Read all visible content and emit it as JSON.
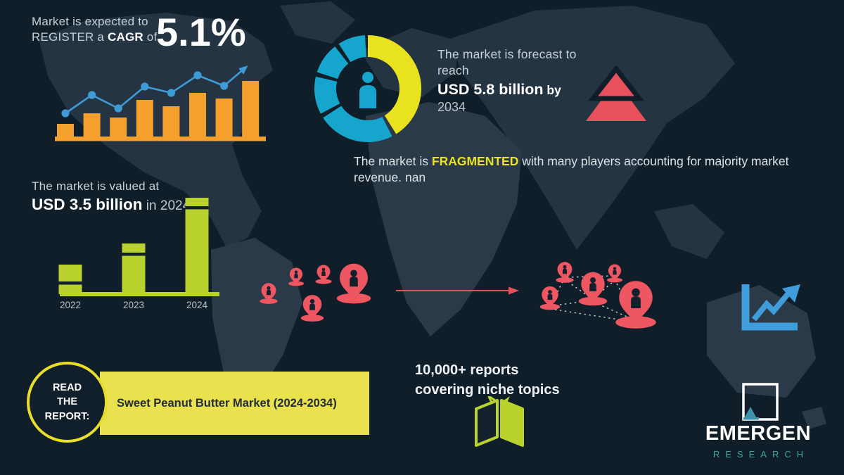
{
  "canvas": {
    "background": "#101e29",
    "map_fill": "#253443",
    "map_fill_light": "#2b3a48"
  },
  "cagr_block": {
    "line1": "Market is expected to",
    "line2_pre": "REGISTER a ",
    "line2_bold": "CAGR",
    "line2_post": " of",
    "value": "5.1%"
  },
  "forecast_block": {
    "line1": "The market is forecast to",
    "line2": "reach",
    "value": "USD 5.8 billion",
    "by": " by",
    "year": "2034"
  },
  "fragmented_block": {
    "pre": "The market is ",
    "highlight": "FRAGMENTED",
    "post": " with many players accounting for majority market revenue. nan"
  },
  "valued_block": {
    "line1": "The market is valued at",
    "value": "USD 3.5 billion",
    "suffix": " in 2024"
  },
  "report_cta": {
    "badge": [
      "READ",
      "THE",
      "REPORT:"
    ],
    "title": "Sweet Peanut Butter Market (2024-2034)"
  },
  "reports_blurb": {
    "line1": "10,000+ reports",
    "line2": "covering niche topics"
  },
  "brand": {
    "name": "EMERGEN",
    "sub": "RESEARCH"
  },
  "icons": {
    "growth_trend": "trend-line-arrow-icon",
    "market_increase": "double-up-arrow-icon",
    "market_share": "donut-person-icon",
    "players": "location-pin-icon",
    "reports": "open-book-icon",
    "growth_chart": "line-chart-axis-arrow-icon",
    "brand_mark": "square-growth-logo-icon"
  },
  "colors": {
    "orange": "#f5a02c",
    "line_blue": "#3e9bd6",
    "donut_yellow": "#e9e21f",
    "cyan": "#15a5cd",
    "green": "#b9d22e",
    "coral": "#ee5661",
    "banner_yellow": "#e9e14e",
    "badge_ring_yellow": "#e8dd2b",
    "highlight_yellow": "#e9e41f",
    "teal": "#3aa79e",
    "icon_blue": "#3f9ddb",
    "text_light": "#c7d0d7",
    "navy": "#13212d"
  },
  "players_illustration": {
    "left_cluster_pins": 5,
    "right_cluster_pins": 5
  },
  "chart_data": [
    {
      "id": "cagr-trend",
      "type": "bar",
      "title": "Upward market growth illustration (CAGR 5.1%)",
      "values": [
        18,
        33,
        27,
        52,
        43,
        62,
        54,
        79
      ],
      "trend_points": [
        29,
        55,
        36,
        67,
        58,
        83,
        68
      ],
      "x_labels": [],
      "unit": "relative height, bars not labeled",
      "bar_color": "#f5a02c",
      "line_color": "#3e9bd6",
      "annotation": "rising trend line with arrow, CAGR 5.1%"
    },
    {
      "id": "market-valuation",
      "type": "bar",
      "categories": [
        "2022",
        "2023",
        "2024"
      ],
      "values": [
        42,
        72,
        137
      ],
      "unit": "relative height, only 2024 value labeled",
      "annotation": "USD 3.5 billion in 2024",
      "bar_color": "#b9d22e",
      "stripe_offsets_from_top": [
        24,
        13,
        12
      ]
    },
    {
      "id": "market-share-donut",
      "type": "pie",
      "title": "Fragmented market share illustration (no labels shown)",
      "segments": [
        {
          "label": "lead-share",
          "color": "#e9e21f",
          "start_deg": 0,
          "end_deg": 148
        },
        {
          "label": "share-2",
          "color": "#15a5cd",
          "start_deg": 153,
          "end_deg": 237
        },
        {
          "label": "share-3",
          "color": "#15a5cd",
          "start_deg": 242,
          "end_deg": 283
        },
        {
          "label": "share-4",
          "color": "#15a5cd",
          "start_deg": 288,
          "end_deg": 322
        },
        {
          "label": "share-5",
          "color": "#15a5cd",
          "start_deg": 327,
          "end_deg": 357
        }
      ],
      "center_icon": "person-icon"
    }
  ]
}
